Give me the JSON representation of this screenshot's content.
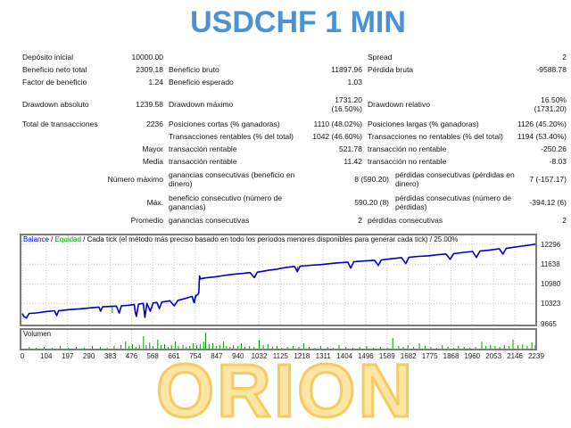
{
  "title": "USDCHF 1 MIN",
  "watermark": "ORION",
  "stats": {
    "rows": [
      {
        "c1l": "Depósito inicial",
        "c1v": "10000.00",
        "c2l": "",
        "c2v": "",
        "c3l": "Spread",
        "c3v": "2"
      },
      {
        "c1l": "Beneficio neto total",
        "c1v": "2309.18",
        "c2l": "Beneficio bruto",
        "c2v": "11897.96",
        "c3l": "Pérdida bruta",
        "c3v": "-9588.78"
      },
      {
        "c1l": "Factor de beneficio",
        "c1v": "1.24",
        "c2l": "Beneficio esperado",
        "c2v": "1.03",
        "c3l": "",
        "c3v": ""
      },
      {
        "c1l": "Drawdown absoluto",
        "c1v": "1239.58",
        "c2l": "Drawdown máximo",
        "c2v": "1731.20\n(16.50%)",
        "c3l": "Drawdown relativo",
        "c3v": "16.50%\n(1731.20)",
        "tall": true,
        "gap": 5
      },
      {
        "c1l": "Total de transacciones",
        "c1v": "2236",
        "c2l": "Posiciones cortas (% ganadoras)",
        "c2v": "1110 (48.02%)",
        "c3l": "Posiciones largas (% ganadoras)",
        "c3v": "1126 (45.20%)",
        "gap": 2
      },
      {
        "c1l": "",
        "c1v": "",
        "c2l": "Transacciones rentables (% del total)",
        "c2v": "1042 (46.60%)",
        "c3l": "Transacciones no rentables (% del total)",
        "c3v": "1194 (53.40%)"
      },
      {
        "c1l": "",
        "c1v": "Mayor",
        "c2l": "transacción rentable",
        "c2v": "521.78",
        "c3l": "transacción no rentable",
        "c3v": "-250.26"
      },
      {
        "c1l": "",
        "c1v": "Media",
        "c2l": "transacción rentable",
        "c2v": "11.42",
        "c3l": "transacción no rentable",
        "c3v": "-8.03"
      },
      {
        "c1l": "",
        "c1v": "Número máximo",
        "c2l": "ganancias consecutivas (beneficio en\ndinero)",
        "c2v": "8 (590.20)",
        "c3l": "pérdidas consecutivas (pérdidas en\ndinero)",
        "c3v": "7 (-157.17)",
        "tall": true,
        "shift": true
      },
      {
        "c1l": "",
        "c1v": "Máx.",
        "c2l": "beneficio consecutivo (número de\nganancias)",
        "c2v": "590.20 (8)",
        "c3l": "pérdidas consecutivas (número de\npérdidas)",
        "c3v": "-394.12 (6)",
        "tall": true,
        "shift": true
      },
      {
        "c1l": "",
        "c1v": "Promedio",
        "c2l": "ganancias consecutivas",
        "c2v": "2",
        "c3l": "pérdidas consecutivas",
        "c3v": "2"
      }
    ]
  },
  "chart_data": {
    "type": "line",
    "legend": {
      "balance_label": "Balance",
      "sep": " / ",
      "equity_label": "Equidad",
      "mode_text": " / Cada tick (el método más preciso basado en todo los períodos menores disponibles para generar cada tick) / 25.00%"
    },
    "volume_label": "Volumen",
    "colors": {
      "balance_line": "#0000c8",
      "equity_tick": "#00a000",
      "volume_bar": "#009900",
      "grid": "#c9c9c9",
      "border": "#7c7c7c",
      "title_blue": "#4a92d2",
      "watermark_gold": "#f5c655"
    },
    "y_ticks": [
      12296,
      11638,
      10980,
      10323,
      9665
    ],
    "x_ticks": [
      0,
      104,
      197,
      290,
      383,
      476,
      568,
      661,
      754,
      847,
      940,
      1032,
      1125,
      1218,
      1311,
      1404,
      1496,
      1589,
      1682,
      1775,
      1868,
      1960,
      2053,
      2146,
      2239
    ],
    "x_max": 2239,
    "final_balance": 12309.18,
    "balance_series": [
      [
        0,
        10000
      ],
      [
        8,
        9895
      ],
      [
        18,
        9850
      ],
      [
        30,
        10005
      ],
      [
        62,
        10020
      ],
      [
        100,
        10060
      ],
      [
        140,
        10095
      ],
      [
        150,
        9935
      ],
      [
        158,
        10090
      ],
      [
        200,
        10130
      ],
      [
        256,
        10160
      ],
      [
        300,
        10190
      ],
      [
        334,
        10215
      ],
      [
        341,
        10080
      ],
      [
        350,
        10225
      ],
      [
        410,
        10248
      ],
      [
        422,
        10020
      ],
      [
        432,
        10255
      ],
      [
        470,
        10280
      ],
      [
        488,
        10305
      ],
      [
        493,
        10020
      ],
      [
        497,
        9905
      ],
      [
        506,
        10310
      ],
      [
        527,
        10338
      ],
      [
        534,
        9875
      ],
      [
        543,
        10340
      ],
      [
        558,
        10080
      ],
      [
        570,
        10352
      ],
      [
        586,
        10370
      ],
      [
        597,
        10165
      ],
      [
        608,
        10380
      ],
      [
        643,
        10425
      ],
      [
        662,
        10255
      ],
      [
        678,
        10440
      ],
      [
        702,
        10485
      ],
      [
        740,
        10570
      ],
      [
        748,
        10370
      ],
      [
        757,
        10600
      ],
      [
        764,
        10630
      ],
      [
        769,
        10680
      ],
      [
        772,
        11245
      ],
      [
        777,
        11150
      ],
      [
        784,
        11165
      ],
      [
        800,
        11185
      ],
      [
        838,
        11215
      ],
      [
        878,
        11260
      ],
      [
        916,
        11300
      ],
      [
        958,
        11330
      ],
      [
        992,
        11360
      ],
      [
        1011,
        11190
      ],
      [
        1024,
        11370
      ],
      [
        1068,
        11430
      ],
      [
        1110,
        11475
      ],
      [
        1150,
        11530
      ],
      [
        1186,
        11562
      ],
      [
        1198,
        11390
      ],
      [
        1210,
        11572
      ],
      [
        1258,
        11600
      ],
      [
        1304,
        11625
      ],
      [
        1358,
        11668
      ],
      [
        1418,
        11708
      ],
      [
        1431,
        11508
      ],
      [
        1444,
        11718
      ],
      [
        1490,
        11744
      ],
      [
        1535,
        11768
      ],
      [
        1551,
        11595
      ],
      [
        1564,
        11778
      ],
      [
        1608,
        11818
      ],
      [
        1652,
        11855
      ],
      [
        1671,
        11655
      ],
      [
        1684,
        11865
      ],
      [
        1728,
        11898
      ],
      [
        1768,
        11915
      ],
      [
        1808,
        11950
      ],
      [
        1846,
        11974
      ],
      [
        1864,
        11800
      ],
      [
        1879,
        11984
      ],
      [
        1924,
        12030
      ],
      [
        1962,
        12060
      ],
      [
        1978,
        11860
      ],
      [
        1994,
        12070
      ],
      [
        2038,
        12108
      ],
      [
        2078,
        12148
      ],
      [
        2094,
        11975
      ],
      [
        2108,
        12160
      ],
      [
        2144,
        12200
      ],
      [
        2176,
        12238
      ],
      [
        2208,
        12268
      ],
      [
        2239,
        12309
      ]
    ],
    "equity_ticks": [
      [
        392,
        10250,
        10020
      ],
      [
        752,
        10600,
        10330
      ],
      [
        1199,
        11560,
        11370
      ]
    ],
    "volume_bars": [
      [
        30,
        2
      ],
      [
        60,
        1
      ],
      [
        95,
        2
      ],
      [
        130,
        1
      ],
      [
        165,
        3
      ],
      [
        200,
        1
      ],
      [
        235,
        2
      ],
      [
        270,
        1
      ],
      [
        305,
        3
      ],
      [
        340,
        2
      ],
      [
        370,
        1
      ],
      [
        400,
        3
      ],
      [
        430,
        4
      ],
      [
        450,
        8
      ],
      [
        465,
        3
      ],
      [
        480,
        5
      ],
      [
        495,
        2
      ],
      [
        510,
        4
      ],
      [
        528,
        14
      ],
      [
        540,
        4
      ],
      [
        555,
        7
      ],
      [
        570,
        3
      ],
      [
        590,
        10
      ],
      [
        605,
        4
      ],
      [
        620,
        5
      ],
      [
        635,
        2
      ],
      [
        650,
        4
      ],
      [
        667,
        8
      ],
      [
        680,
        3
      ],
      [
        700,
        4
      ],
      [
        715,
        2
      ],
      [
        730,
        3
      ],
      [
        745,
        6
      ],
      [
        760,
        4
      ],
      [
        775,
        5
      ],
      [
        790,
        8
      ],
      [
        799,
        18
      ],
      [
        815,
        5
      ],
      [
        830,
        6
      ],
      [
        845,
        3
      ],
      [
        860,
        4
      ],
      [
        877,
        8
      ],
      [
        890,
        3
      ],
      [
        905,
        2
      ],
      [
        920,
        4
      ],
      [
        940,
        3
      ],
      [
        954,
        6
      ],
      [
        970,
        2
      ],
      [
        990,
        3
      ],
      [
        1010,
        2
      ],
      [
        1032,
        10
      ],
      [
        1050,
        4
      ],
      [
        1070,
        5
      ],
      [
        1090,
        2
      ],
      [
        1110,
        3
      ],
      [
        1130,
        1
      ],
      [
        1155,
        2
      ],
      [
        1180,
        3
      ],
      [
        1205,
        2
      ],
      [
        1226,
        6
      ],
      [
        1250,
        2
      ],
      [
        1275,
        1
      ],
      [
        1300,
        3
      ],
      [
        1330,
        2
      ],
      [
        1355,
        1
      ],
      [
        1380,
        4
      ],
      [
        1410,
        2
      ],
      [
        1440,
        1
      ],
      [
        1470,
        2
      ],
      [
        1500,
        3
      ],
      [
        1530,
        1
      ],
      [
        1560,
        2
      ],
      [
        1590,
        1
      ],
      [
        1614,
        12
      ],
      [
        1640,
        3
      ],
      [
        1660,
        2
      ],
      [
        1680,
        4
      ],
      [
        1705,
        2
      ],
      [
        1730,
        6
      ],
      [
        1755,
        3
      ],
      [
        1780,
        2
      ],
      [
        1805,
        1
      ],
      [
        1830,
        4
      ],
      [
        1855,
        2
      ],
      [
        1880,
        1
      ],
      [
        1900,
        3
      ],
      [
        1925,
        2
      ],
      [
        1950,
        1
      ],
      [
        1975,
        2
      ],
      [
        2002,
        8
      ],
      [
        2020,
        3
      ],
      [
        2040,
        4
      ],
      [
        2060,
        3
      ],
      [
        2080,
        2
      ],
      [
        2100,
        4
      ],
      [
        2120,
        3
      ],
      [
        2138,
        10
      ],
      [
        2160,
        4
      ],
      [
        2180,
        5
      ],
      [
        2200,
        3
      ],
      [
        2220,
        7
      ],
      [
        2235,
        4
      ]
    ]
  }
}
